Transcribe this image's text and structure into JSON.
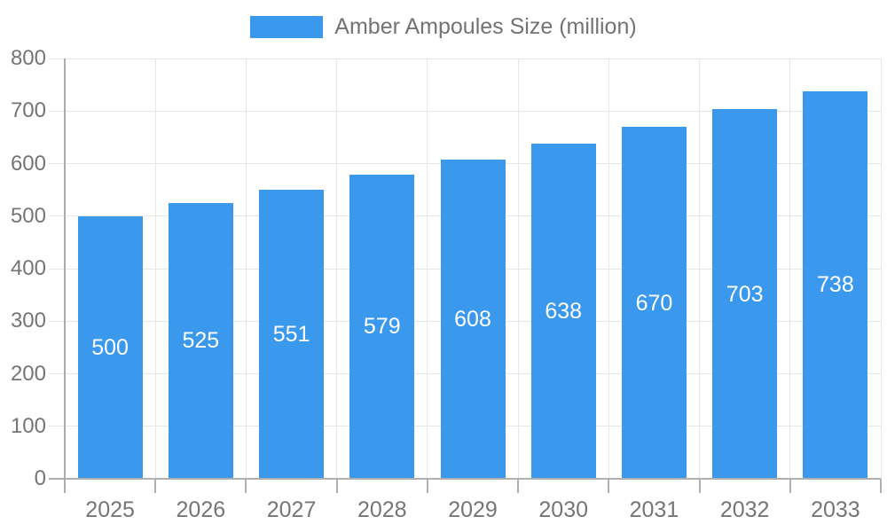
{
  "chart_data": {
    "type": "bar",
    "title": "",
    "legend": [
      {
        "label": "Amber Ampoules Size (million)",
        "color": "#3B99ED"
      }
    ],
    "legend_position": "top",
    "categories": [
      "2025",
      "2026",
      "2027",
      "2028",
      "2029",
      "2030",
      "2031",
      "2032",
      "2033"
    ],
    "values": [
      500,
      525,
      551,
      579,
      608,
      638,
      670,
      703,
      738
    ],
    "xlabel": "",
    "ylabel": "",
    "ylim": [
      0,
      800
    ],
    "yticks": [
      0,
      100,
      200,
      300,
      400,
      500,
      600,
      700,
      800
    ],
    "grid": true,
    "bar_color": "#3B99ED",
    "value_label_color": "#FFFFFF",
    "value_label_position": "inside-middle",
    "axis_text_color": "#757575"
  }
}
